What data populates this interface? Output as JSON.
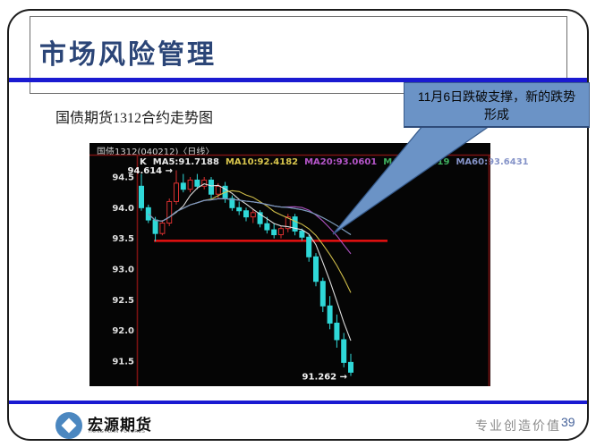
{
  "slide": {
    "title": "市场风险管理",
    "subtitle": "国债期货1312合约走势图",
    "page_number": "39"
  },
  "callout": {
    "text": "11月6日跌破支撑，新的跌势形成",
    "fill_color": "#6b93c6",
    "border_color": "#3a5c8c"
  },
  "footer": {
    "brand_cn": "宏源期货",
    "brand_en": "HONGYUAN FUTURES",
    "slogan": "专业创造价值"
  },
  "accent_colors": {
    "divider_blue": "#1a1ad1",
    "title_navy": "#2b4577",
    "logo_blue": "#4b87c0"
  },
  "chart_data": {
    "type": "candlestick",
    "title": "国债1312(040212)〈日线〉",
    "legend": [
      {
        "label": "K",
        "color": "#e8e8e8"
      },
      {
        "label": "MA5:91.7188",
        "color": "#e8e8e8"
      },
      {
        "label": "MA10:92.4182",
        "color": "#d9c64d"
      },
      {
        "label": "MA20:93.0601",
        "color": "#b455c8"
      },
      {
        "label": "MA40:93.619",
        "color": "#3faf5f"
      },
      {
        "label": "MA60:93.6431",
        "color": "#8593c8"
      }
    ],
    "y_ticks": [
      "94.5",
      "94.0",
      "93.5",
      "93.0",
      "92.5",
      "92.0",
      "91.5"
    ],
    "ylim": [
      91.1,
      94.75
    ],
    "support_level": 93.46,
    "support_color": "#e81010",
    "annotations": [
      {
        "text": "94.614 →",
        "price": 94.614,
        "at_index": 5
      },
      {
        "text": "91.262 →",
        "price": 91.262,
        "at_index": 30
      }
    ],
    "candle_colors": {
      "up": "#d83030",
      "down": "#2fd8d8"
    },
    "ma_lines": [
      {
        "window": 5,
        "color": "#e8e8e8"
      },
      {
        "window": 10,
        "color": "#d9c64d"
      },
      {
        "window": 20,
        "color": "#b455c8"
      },
      {
        "window": 40,
        "color": "#3faf5f"
      },
      {
        "window": 60,
        "color": "#8593c8"
      }
    ],
    "candles": [
      [
        94.35,
        94.55,
        93.95,
        94.0
      ],
      [
        94.0,
        94.05,
        93.75,
        93.8
      ],
      [
        93.8,
        93.85,
        93.45,
        93.58
      ],
      [
        93.58,
        93.8,
        93.55,
        93.75
      ],
      [
        93.75,
        94.15,
        93.7,
        94.1
      ],
      [
        94.1,
        94.61,
        94.05,
        94.4
      ],
      [
        94.4,
        94.55,
        94.25,
        94.3
      ],
      [
        94.3,
        94.5,
        94.25,
        94.45
      ],
      [
        94.45,
        94.55,
        94.3,
        94.35
      ],
      [
        94.35,
        94.5,
        94.3,
        94.45
      ],
      [
        94.45,
        94.5,
        94.15,
        94.22
      ],
      [
        94.22,
        94.4,
        94.15,
        94.35
      ],
      [
        94.35,
        94.42,
        94.08,
        94.15
      ],
      [
        94.15,
        94.2,
        93.95,
        94.0
      ],
      [
        94.0,
        94.1,
        93.88,
        93.95
      ],
      [
        93.95,
        94.0,
        93.78,
        93.85
      ],
      [
        93.85,
        93.97,
        93.75,
        93.92
      ],
      [
        93.92,
        93.96,
        93.68,
        93.74
      ],
      [
        93.74,
        93.85,
        93.58,
        93.64
      ],
      [
        93.64,
        93.74,
        93.5,
        93.56
      ],
      [
        93.56,
        93.7,
        93.5,
        93.66
      ],
      [
        93.66,
        93.9,
        93.6,
        93.85
      ],
      [
        93.85,
        93.9,
        93.55,
        93.62
      ],
      [
        93.62,
        93.66,
        93.46,
        93.52
      ],
      [
        93.52,
        93.56,
        93.12,
        93.2
      ],
      [
        93.2,
        93.26,
        92.72,
        92.8
      ],
      [
        92.8,
        92.86,
        92.3,
        92.4
      ],
      [
        92.4,
        92.56,
        92.02,
        92.12
      ],
      [
        92.12,
        92.26,
        91.72,
        91.85
      ],
      [
        91.85,
        91.96,
        91.4,
        91.48
      ],
      [
        91.48,
        91.62,
        91.26,
        91.32
      ]
    ]
  }
}
